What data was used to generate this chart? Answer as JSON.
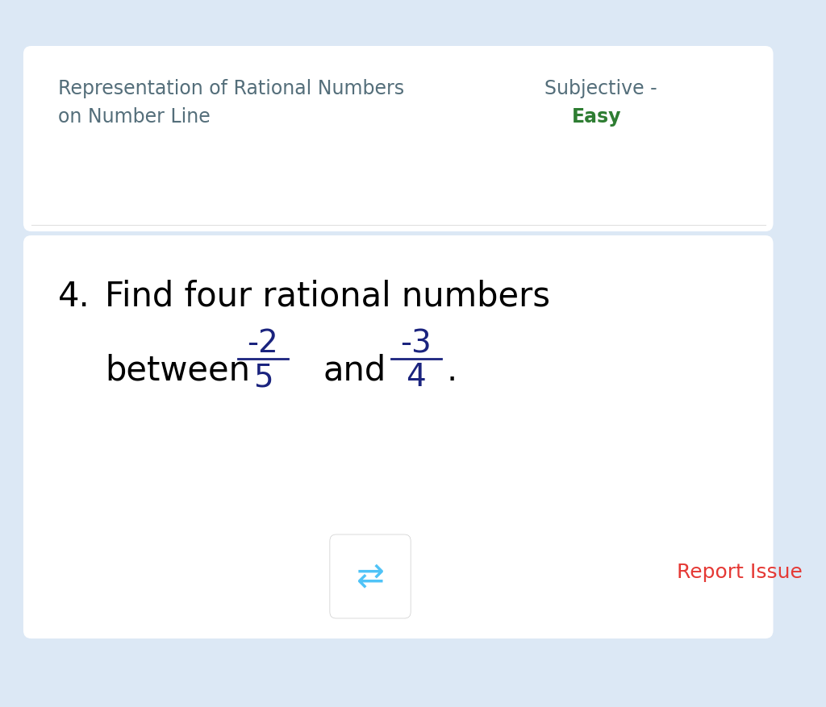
{
  "bg_color": "#dce8f5",
  "card1_color": "#ffffff",
  "card2_color": "#ffffff",
  "header_text1": "Representation of Rational Numbers",
  "header_text2": "on Number Line",
  "subjective_text": "Subjective -",
  "easy_text": "Easy",
  "easy_color": "#2e7d32",
  "header_color": "#546e7a",
  "question_number": "4.",
  "question_line1": "Find four rational numbers",
  "question_line2_before": "between",
  "question_line2_frac1_num": "-2",
  "question_line2_frac1_den": "5",
  "question_line2_and": "and",
  "question_line2_frac2_num": "-3",
  "question_line2_frac2_den": "4",
  "question_color": "#000000",
  "frac_color": "#1a237e",
  "report_text": "Report Issue",
  "report_color": "#e53935",
  "button_color": "#4fc3f7",
  "button_bg": "#ffffff",
  "button_edge": "#cccccc"
}
